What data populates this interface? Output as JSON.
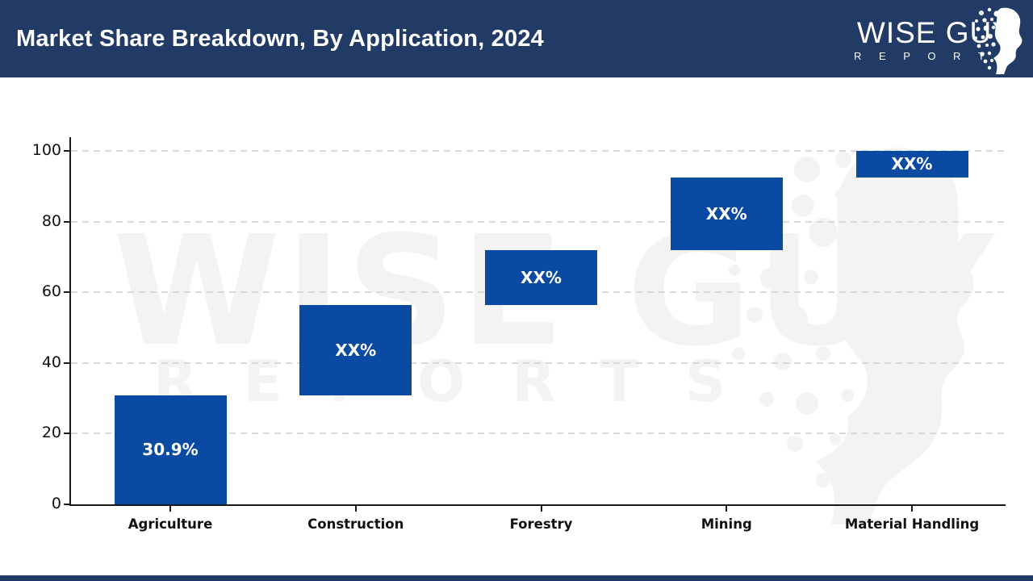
{
  "header": {
    "title": "Market Share Breakdown, By Application, 2024",
    "logo": {
      "line1": "WISE GUY",
      "line2": "R E P O R T S"
    }
  },
  "watermark": {
    "line1": "WISE GUY",
    "line2": "REPORTS"
  },
  "colors": {
    "header_bg": "#213a66",
    "footer_bg": "#213a66",
    "bar": "#0b4aa2",
    "bar_label": "#ffffff",
    "grid": "#d9d9d9",
    "axis": "#1a1a1a",
    "watermark": "#f3f3f3"
  },
  "chart_data": {
    "type": "bar",
    "subtype": "waterfall",
    "title": "Market Share Breakdown, By Application, 2024",
    "xlabel": "",
    "ylabel": "",
    "categories": [
      "Agriculture",
      "Construction",
      "Forestry",
      "Mining",
      "Material Handling"
    ],
    "segments": [
      {
        "category": "Agriculture",
        "start": 0,
        "end": 30.9,
        "value": 30.9,
        "label": "30.9%"
      },
      {
        "category": "Construction",
        "start": 30.9,
        "end": 56.5,
        "value": 25.6,
        "label": "XX%"
      },
      {
        "category": "Forestry",
        "start": 56.5,
        "end": 72.0,
        "value": 15.5,
        "label": "XX%"
      },
      {
        "category": "Mining",
        "start": 72.0,
        "end": 92.5,
        "value": 20.5,
        "label": "XX%"
      },
      {
        "category": "Material Handling",
        "start": 92.5,
        "end": 100.0,
        "value": 7.5,
        "label": "XX%"
      }
    ],
    "yticks": [
      0,
      20,
      40,
      60,
      80,
      100
    ],
    "ylim": [
      0,
      104
    ],
    "grid": "horizontal-dashed",
    "legend": "none"
  }
}
